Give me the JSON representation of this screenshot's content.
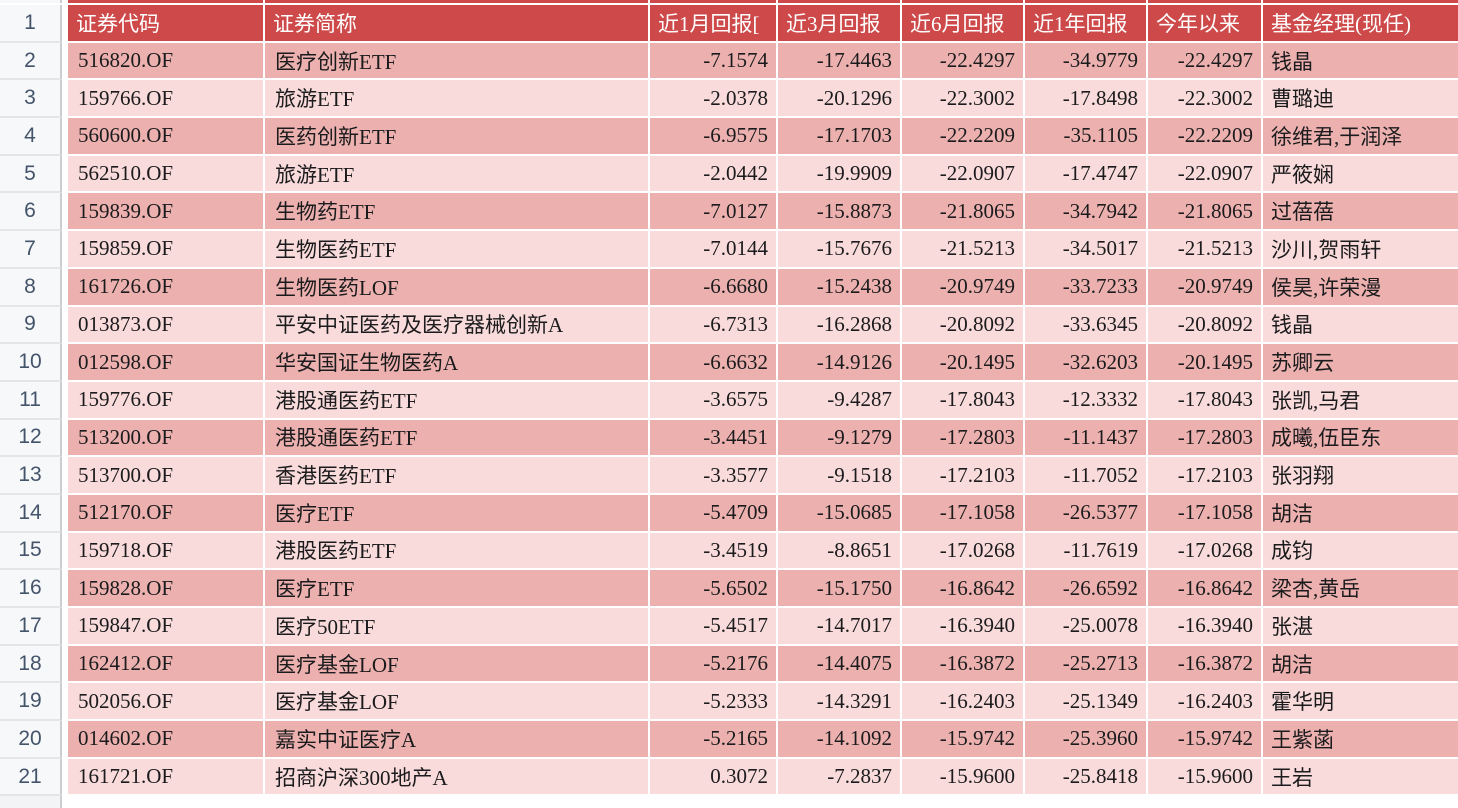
{
  "colors": {
    "header_bg": "#CE4A4A",
    "band_dark": "#ECB1AF",
    "band_light": "#F8DBDA",
    "gutter_bg": "#F7F8FA",
    "gutter_border": "#CBCDD1",
    "gutter_text": "#44546A",
    "data_text": "#1B1B1D"
  },
  "table": {
    "header_row_no": "1",
    "columns": [
      {
        "key": "code",
        "label": "证券代码"
      },
      {
        "key": "name",
        "label": "证券简称"
      },
      {
        "key": "r1m",
        "label": "近1月回报["
      },
      {
        "key": "r3m",
        "label": "近3月回报"
      },
      {
        "key": "r6m",
        "label": "近6月回报"
      },
      {
        "key": "r1y",
        "label": "近1年回报"
      },
      {
        "key": "ytd",
        "label": "今年以来"
      },
      {
        "key": "manager",
        "label": "基金经理(现任)"
      }
    ],
    "rows": [
      {
        "row_no": "2",
        "code": "516820.OF",
        "name": "医疗创新ETF",
        "r1m": "-7.1574",
        "r3m": "-17.4463",
        "r6m": "-22.4297",
        "r1y": "-34.9779",
        "ytd": "-22.4297",
        "manager": "钱晶"
      },
      {
        "row_no": "3",
        "code": "159766.OF",
        "name": "旅游ETF",
        "r1m": "-2.0378",
        "r3m": "-20.1296",
        "r6m": "-22.3002",
        "r1y": "-17.8498",
        "ytd": "-22.3002",
        "manager": "曹璐迪"
      },
      {
        "row_no": "4",
        "code": "560600.OF",
        "name": "医药创新ETF",
        "r1m": "-6.9575",
        "r3m": "-17.1703",
        "r6m": "-22.2209",
        "r1y": "-35.1105",
        "ytd": "-22.2209",
        "manager": "徐维君,于润泽"
      },
      {
        "row_no": "5",
        "code": "562510.OF",
        "name": "旅游ETF",
        "r1m": "-2.0442",
        "r3m": "-19.9909",
        "r6m": "-22.0907",
        "r1y": "-17.4747",
        "ytd": "-22.0907",
        "manager": "严筱娴"
      },
      {
        "row_no": "6",
        "code": "159839.OF",
        "name": "生物药ETF",
        "r1m": "-7.0127",
        "r3m": "-15.8873",
        "r6m": "-21.8065",
        "r1y": "-34.7942",
        "ytd": "-21.8065",
        "manager": "过蓓蓓"
      },
      {
        "row_no": "7",
        "code": "159859.OF",
        "name": "生物医药ETF",
        "r1m": "-7.0144",
        "r3m": "-15.7676",
        "r6m": "-21.5213",
        "r1y": "-34.5017",
        "ytd": "-21.5213",
        "manager": "沙川,贺雨轩"
      },
      {
        "row_no": "8",
        "code": "161726.OF",
        "name": "生物医药LOF",
        "r1m": "-6.6680",
        "r3m": "-15.2438",
        "r6m": "-20.9749",
        "r1y": "-33.7233",
        "ytd": "-20.9749",
        "manager": "侯昊,许荣漫"
      },
      {
        "row_no": "9",
        "code": "013873.OF",
        "name": "平安中证医药及医疗器械创新A",
        "r1m": "-6.7313",
        "r3m": "-16.2868",
        "r6m": "-20.8092",
        "r1y": "-33.6345",
        "ytd": "-20.8092",
        "manager": "钱晶"
      },
      {
        "row_no": "10",
        "code": "012598.OF",
        "name": "华安国证生物医药A",
        "r1m": "-6.6632",
        "r3m": "-14.9126",
        "r6m": "-20.1495",
        "r1y": "-32.6203",
        "ytd": "-20.1495",
        "manager": "苏卿云"
      },
      {
        "row_no": "11",
        "code": "159776.OF",
        "name": "港股通医药ETF",
        "r1m": "-3.6575",
        "r3m": "-9.4287",
        "r6m": "-17.8043",
        "r1y": "-12.3332",
        "ytd": "-17.8043",
        "manager": "张凯,马君"
      },
      {
        "row_no": "12",
        "code": "513200.OF",
        "name": "港股通医药ETF",
        "r1m": "-3.4451",
        "r3m": "-9.1279",
        "r6m": "-17.2803",
        "r1y": "-11.1437",
        "ytd": "-17.2803",
        "manager": "成曦,伍臣东"
      },
      {
        "row_no": "13",
        "code": "513700.OF",
        "name": "香港医药ETF",
        "r1m": "-3.3577",
        "r3m": "-9.1518",
        "r6m": "-17.2103",
        "r1y": "-11.7052",
        "ytd": "-17.2103",
        "manager": "张羽翔"
      },
      {
        "row_no": "14",
        "code": "512170.OF",
        "name": "医疗ETF",
        "r1m": "-5.4709",
        "r3m": "-15.0685",
        "r6m": "-17.1058",
        "r1y": "-26.5377",
        "ytd": "-17.1058",
        "manager": "胡洁"
      },
      {
        "row_no": "15",
        "code": "159718.OF",
        "name": "港股医药ETF",
        "r1m": "-3.4519",
        "r3m": "-8.8651",
        "r6m": "-17.0268",
        "r1y": "-11.7619",
        "ytd": "-17.0268",
        "manager": "成钧"
      },
      {
        "row_no": "16",
        "code": "159828.OF",
        "name": "医疗ETF",
        "r1m": "-5.6502",
        "r3m": "-15.1750",
        "r6m": "-16.8642",
        "r1y": "-26.6592",
        "ytd": "-16.8642",
        "manager": "梁杏,黄岳"
      },
      {
        "row_no": "17",
        "code": "159847.OF",
        "name": "医疗50ETF",
        "r1m": "-5.4517",
        "r3m": "-14.7017",
        "r6m": "-16.3940",
        "r1y": "-25.0078",
        "ytd": "-16.3940",
        "manager": "张湛"
      },
      {
        "row_no": "18",
        "code": "162412.OF",
        "name": "医疗基金LOF",
        "r1m": "-5.2176",
        "r3m": "-14.4075",
        "r6m": "-16.3872",
        "r1y": "-25.2713",
        "ytd": "-16.3872",
        "manager": "胡洁"
      },
      {
        "row_no": "19",
        "code": "502056.OF",
        "name": "医疗基金LOF",
        "r1m": "-5.2333",
        "r3m": "-14.3291",
        "r6m": "-16.2403",
        "r1y": "-25.1349",
        "ytd": "-16.2403",
        "manager": "霍华明"
      },
      {
        "row_no": "20",
        "code": "014602.OF",
        "name": "嘉实中证医疗A",
        "r1m": "-5.2165",
        "r3m": "-14.1092",
        "r6m": "-15.9742",
        "r1y": "-25.3960",
        "ytd": "-15.9742",
        "manager": "王紫菡"
      },
      {
        "row_no": "21",
        "code": "161721.OF",
        "name": "招商沪深300地产A",
        "r1m": "0.3072",
        "r3m": "-7.2837",
        "r6m": "-15.9600",
        "r1y": "-25.8418",
        "ytd": "-15.9600",
        "manager": "王岩"
      }
    ]
  }
}
